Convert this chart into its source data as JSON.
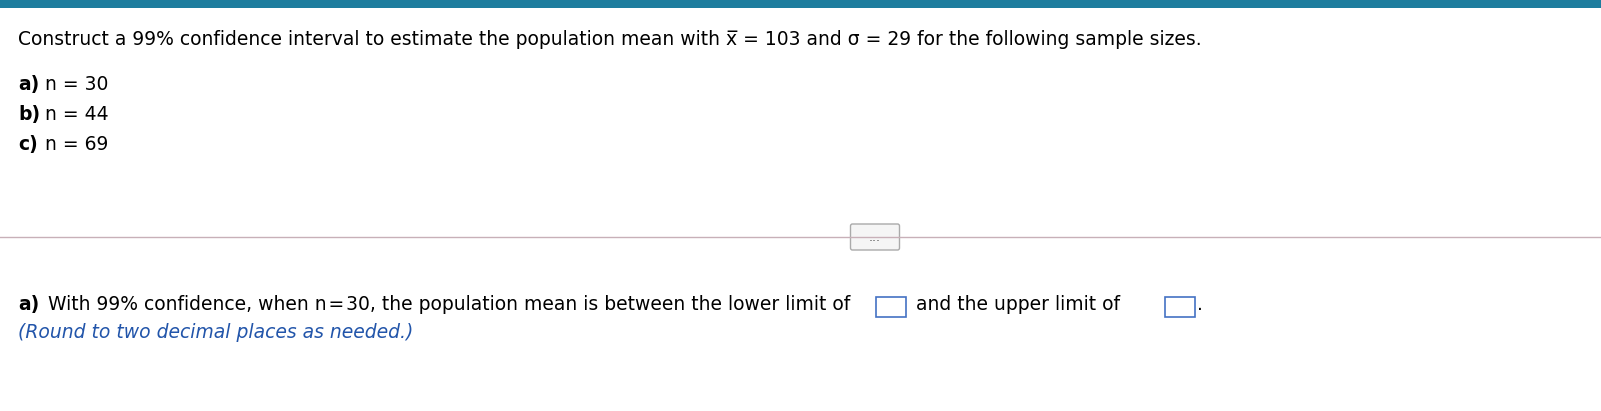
{
  "title_line": "Construct a 99% confidence interval to estimate the population mean with x̅ = 103 and σ = 29 for the following sample sizes.",
  "items": [
    {
      "bold": "a)",
      "text": "n = 30"
    },
    {
      "bold": "b)",
      "text": "n = 44"
    },
    {
      "bold": "c)",
      "text": "n = 69"
    }
  ],
  "divider_color": "#c8b0b8",
  "dots_text": "...",
  "answer_bold": "a)",
  "answer_prefix": " With 99% confidence, when n = 30, the population mean is between the lower limit of",
  "answer_mid": " and the upper limit of",
  "answer_end": ".",
  "answer_line2": "(Round to two decimal places as needed.)",
  "top_bar_color": "#1e7d9e",
  "background_color": "#ffffff",
  "text_color": "#000000",
  "blue_link_color": "#2255aa",
  "font_size": 13.5,
  "bold_font_size": 13.5
}
